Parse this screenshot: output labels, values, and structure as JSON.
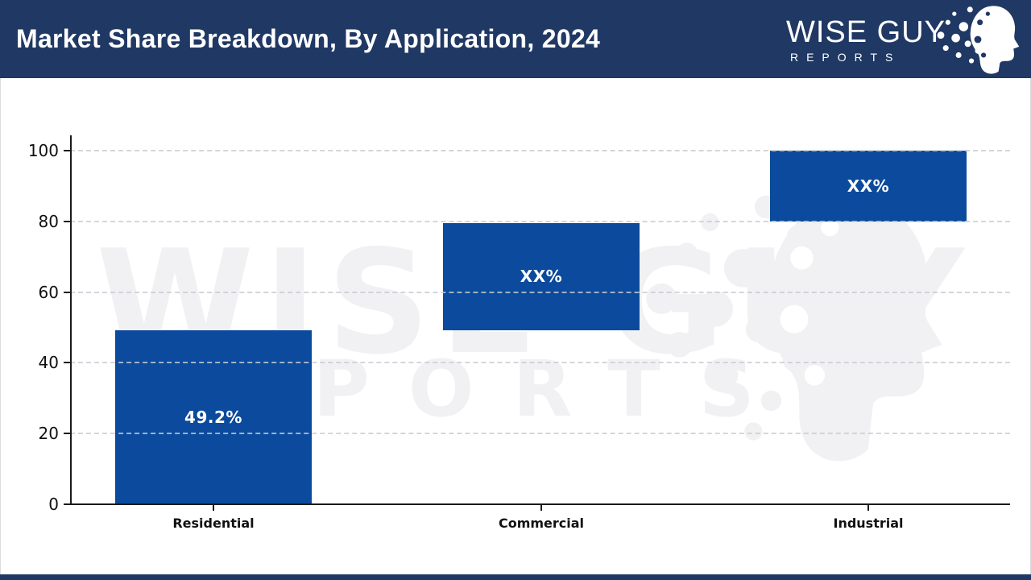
{
  "header": {
    "title": "Market Share Breakdown, By Application, 2024",
    "brand": {
      "line1": "WISE GUY",
      "line2": "REPORTS"
    }
  },
  "watermark": {
    "line1": "WISE GUY",
    "line2": "REPORTS"
  },
  "colors": {
    "header_bg": "#203864",
    "bar": "#0B4A9C",
    "bar_label": "#ffffff",
    "axis": "#1a1a1a",
    "grid": "rgba(200,204,211,0.8)",
    "watermark": "#f1f1f3"
  },
  "chart_data": {
    "type": "bar",
    "subtype": "waterfall",
    "title": "Market Share Breakdown, By Application, 2024",
    "categories": [
      "Residential",
      "Commercial",
      "Industrial"
    ],
    "segments": [
      {
        "category": "Residential",
        "start": 0,
        "end": 49.2,
        "label": "49.2%"
      },
      {
        "category": "Commercial",
        "start": 49.2,
        "end": 79.6,
        "label": "XX%"
      },
      {
        "category": "Industrial",
        "start": 79.9,
        "end": 100,
        "label": "XX%"
      }
    ],
    "yticks": [
      0,
      20,
      40,
      60,
      80,
      100
    ],
    "ylim": [
      0,
      104.5
    ],
    "xlabel": "",
    "ylabel": "",
    "grid": "horizontal dashed lines drawn over bars",
    "legend": null,
    "bar_color": "#0B4A9C",
    "value_label_color": "#ffffff"
  }
}
